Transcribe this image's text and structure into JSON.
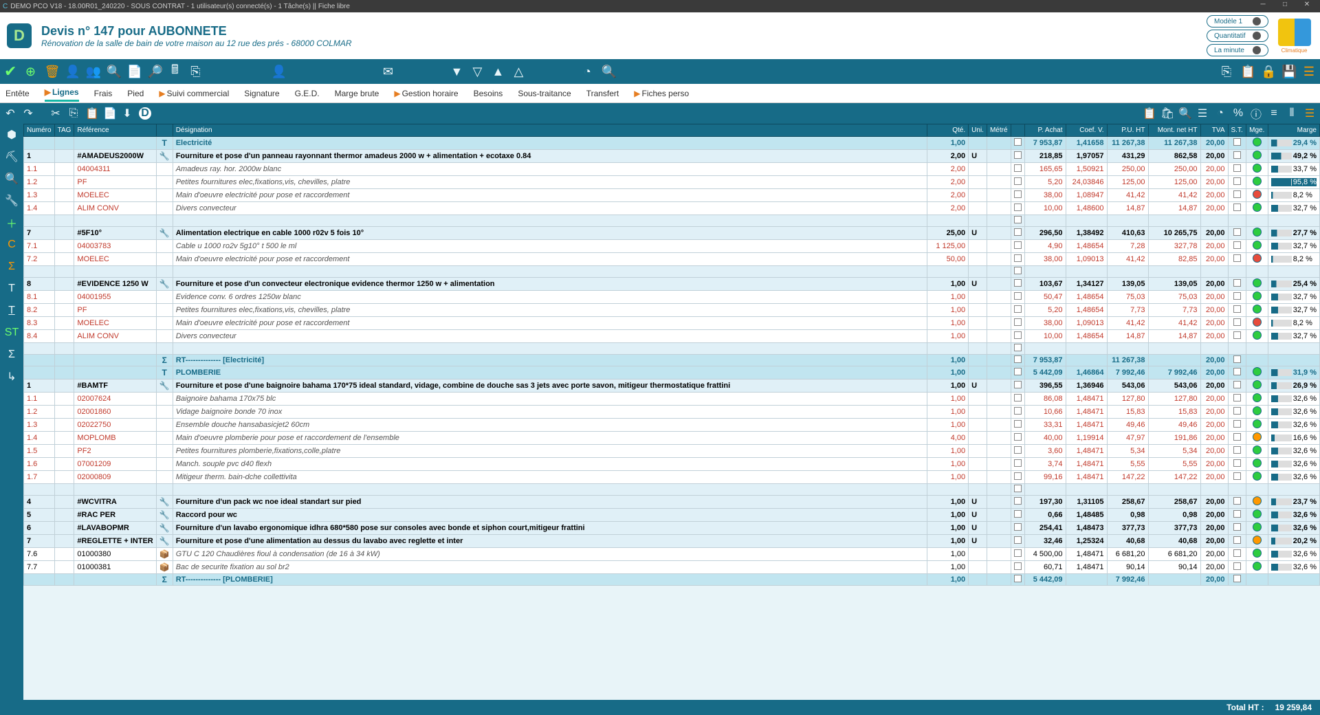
{
  "titlebar": "DEMO PCO V18 - 18.00R01_240220 - SOUS CONTRAT - 1 utilisateur(s) connecté(s) - 1 Tâche(s) || Fiche libre",
  "header": {
    "title": "Devis n° 147 pour AUBONNETE",
    "subtitle": "Rénovation de la salle de bain de votre maison au 12 rue des prés - 68000 COLMAR",
    "btns": [
      "Modèle 1",
      "Quantitatif",
      "La minute"
    ],
    "climat": "Climatique"
  },
  "tabs": [
    "Entête",
    "Lignes",
    "Frais",
    "Pied",
    "Suivi commercial",
    "Signature",
    "G.E.D.",
    "Marge brute",
    "Gestion horaire",
    "Besoins",
    "Sous-traitance",
    "Transfert",
    "Fiches perso"
  ],
  "tabs_arrow": [
    false,
    true,
    false,
    false,
    true,
    false,
    false,
    false,
    true,
    false,
    false,
    false,
    true
  ],
  "active_tab": 1,
  "columns": [
    "Numéro",
    "TAG",
    "Référence",
    "",
    "Désignation",
    "Qté.",
    "Uni.",
    "Métré",
    "",
    "P. Achat",
    "Coef. V.",
    "P.U. HT",
    "Mont. net HT",
    "TVA",
    "S.T.",
    "Mge.",
    "Marge"
  ],
  "rows": [
    {
      "type": "section",
      "ico": "T",
      "desig": "Electricité",
      "qte": "1,00",
      "cb": 1,
      "pa": "7 953,87",
      "cv": "1,41658",
      "pu": "11 267,38",
      "mnt": "11 267,38",
      "tva": "20,00",
      "st": 1,
      "mge": "green",
      "marge": "29,4 %",
      "mp": 29
    },
    {
      "type": "work",
      "num": "1",
      "ref": "#AMADEUS2000W",
      "ico": "🔧",
      "desig": "Fourniture et pose d'un panneau rayonnant thermor  amadeus 2000 w + alimentation + ecotaxe 0.84",
      "qte": "2,00",
      "uni": "U",
      "cb": 1,
      "pa": "218,85",
      "cv": "1,97057",
      "pu": "431,29",
      "mnt": "862,58",
      "tva": "20,00",
      "st": 1,
      "mge": "green",
      "marge": "49,2 %",
      "mp": 49
    },
    {
      "type": "detail",
      "num": "1.1",
      "ref": "04004311",
      "desig": "Amadeus ray. hor. 2000w blanc",
      "qte": "2,00",
      "cb": 1,
      "pa": "165,65",
      "cv": "1,50921",
      "pu": "250,00",
      "mnt": "250,00",
      "tva": "20,00",
      "st": 1,
      "mge": "green",
      "marge": "33,7 %",
      "mp": 34,
      "red": 1
    },
    {
      "type": "detail",
      "num": "1.2",
      "ref": "PF",
      "desig": "Petites fournitures elec,fixations,vis, chevilles, platre",
      "qte": "2,00",
      "cb": 1,
      "pa": "5,20",
      "cv": "24,03846",
      "pu": "125,00",
      "mnt": "125,00",
      "tva": "20,00",
      "st": 1,
      "mge": "green",
      "marge": "95,8 %",
      "mp": 96,
      "red": 1,
      "hl": 1
    },
    {
      "type": "detail",
      "num": "1.3",
      "ref": "MOELEC",
      "desig": "Main d'oeuvre electricité pour pose et raccordement",
      "qte": "2,00",
      "cb": 1,
      "pa": "38,00",
      "cv": "1,08947",
      "pu": "41,42",
      "mnt": "41,42",
      "tva": "20,00",
      "st": 1,
      "mge": "red",
      "marge": "8,2 %",
      "mp": 8,
      "red": 1
    },
    {
      "type": "detail",
      "num": "1.4",
      "ref": "ALIM CONV",
      "desig": "Divers convecteur",
      "qte": "2,00",
      "cb": 1,
      "pa": "10,00",
      "cv": "1,48600",
      "pu": "14,87",
      "mnt": "14,87",
      "tva": "20,00",
      "st": 1,
      "mge": "green",
      "marge": "32,7 %",
      "mp": 33,
      "red": 1
    },
    {
      "type": "blank",
      "cb": 1
    },
    {
      "type": "work",
      "num": "7",
      "ref": "#5F10°",
      "ico": "🔧",
      "desig": "Alimentation electrique en cable 1000 r02v 5 fois 10°",
      "qte": "25,00",
      "uni": "U",
      "cb": 1,
      "pa": "296,50",
      "cv": "1,38492",
      "pu": "410,63",
      "mnt": "10 265,75",
      "tva": "20,00",
      "st": 1,
      "mge": "green",
      "marge": "27,7 %",
      "mp": 28
    },
    {
      "type": "detail",
      "num": "7.1",
      "ref": "04003783",
      "desig": "Cable u 1000 ro2v 5g10° t 500 le ml",
      "qte": "1 125,00",
      "cb": 1,
      "pa": "4,90",
      "cv": "1,48654",
      "pu": "7,28",
      "mnt": "327,78",
      "tva": "20,00",
      "st": 1,
      "mge": "green",
      "marge": "32,7 %",
      "mp": 33,
      "red": 1
    },
    {
      "type": "detail",
      "num": "7.2",
      "ref": "MOELEC",
      "desig": "Main d'oeuvre electricité pour pose et raccordement",
      "qte": "50,00",
      "cb": 1,
      "pa": "38,00",
      "cv": "1,09013",
      "pu": "41,42",
      "mnt": "82,85",
      "tva": "20,00",
      "st": 1,
      "mge": "red",
      "marge": "8,2 %",
      "mp": 8,
      "red": 1
    },
    {
      "type": "blank",
      "cb": 1
    },
    {
      "type": "work",
      "num": "8",
      "ref": "#EVIDENCE 1250 W",
      "ico": "🔧",
      "desig": "Fourniture et pose d'un convecteur electronique evidence thermor 1250 w + alimentation",
      "qte": "1,00",
      "uni": "U",
      "cb": 1,
      "pa": "103,67",
      "cv": "1,34127",
      "pu": "139,05",
      "mnt": "139,05",
      "tva": "20,00",
      "st": 1,
      "mge": "green",
      "marge": "25,4 %",
      "mp": 25
    },
    {
      "type": "detail",
      "num": "8.1",
      "ref": "04001955",
      "desig": "Evidence conv. 6 ordres 1250w blanc",
      "qte": "1,00",
      "cb": 1,
      "pa": "50,47",
      "cv": "1,48654",
      "pu": "75,03",
      "mnt": "75,03",
      "tva": "20,00",
      "st": 1,
      "mge": "green",
      "marge": "32,7 %",
      "mp": 33,
      "red": 1
    },
    {
      "type": "detail",
      "num": "8.2",
      "ref": "PF",
      "desig": "Petites fournitures elec,fixations,vis, chevilles, platre",
      "qte": "1,00",
      "cb": 1,
      "pa": "5,20",
      "cv": "1,48654",
      "pu": "7,73",
      "mnt": "7,73",
      "tva": "20,00",
      "st": 1,
      "mge": "green",
      "marge": "32,7 %",
      "mp": 33,
      "red": 1
    },
    {
      "type": "detail",
      "num": "8.3",
      "ref": "MOELEC",
      "desig": "Main d'oeuvre electricité pour pose et raccordement",
      "qte": "1,00",
      "cb": 1,
      "pa": "38,00",
      "cv": "1,09013",
      "pu": "41,42",
      "mnt": "41,42",
      "tva": "20,00",
      "st": 1,
      "mge": "red",
      "marge": "8,2 %",
      "mp": 8,
      "red": 1
    },
    {
      "type": "detail",
      "num": "8.4",
      "ref": "ALIM CONV",
      "desig": "Divers convecteur",
      "qte": "1,00",
      "cb": 1,
      "pa": "10,00",
      "cv": "1,48654",
      "pu": "14,87",
      "mnt": "14,87",
      "tva": "20,00",
      "st": 1,
      "mge": "green",
      "marge": "32,7 %",
      "mp": 33,
      "red": 1
    },
    {
      "type": "blank",
      "cb": 1
    },
    {
      "type": "sigma",
      "ico": "Σ",
      "desig": "RT-------------- [Electricité]",
      "qte": "1,00",
      "cb": 1,
      "pa": "7 953,87",
      "pu": "11 267,38",
      "tva": "20,00",
      "st": 1
    },
    {
      "type": "section",
      "ico": "T",
      "desig": "PLOMBERIE",
      "qte": "1,00",
      "cb": 1,
      "pa": "5 442,09",
      "cv": "1,46864",
      "pu": "7 992,46",
      "mnt": "7 992,46",
      "tva": "20,00",
      "st": 1,
      "mge": "green",
      "marge": "31,9 %",
      "mp": 32
    },
    {
      "type": "work",
      "num": "1",
      "ref": "#BAMTF",
      "ico": "🔧",
      "desig": "Fourniture  et pose d'une baignoire bahama 170*75 ideal standard,   vidage, combine de douche sas 3 jets avec porte savon, mitigeur thermostatique frattini",
      "qte": "1,00",
      "uni": "U",
      "cb": 1,
      "pa": "396,55",
      "cv": "1,36946",
      "pu": "543,06",
      "mnt": "543,06",
      "tva": "20,00",
      "st": 1,
      "mge": "green",
      "marge": "26,9 %",
      "mp": 27
    },
    {
      "type": "detail",
      "num": "1.1",
      "ref": "02007624",
      "desig": "Baignoire bahama 170x75 blc",
      "qte": "1,00",
      "cb": 1,
      "pa": "86,08",
      "cv": "1,48471",
      "pu": "127,80",
      "mnt": "127,80",
      "tva": "20,00",
      "st": 1,
      "mge": "green",
      "marge": "32,6 %",
      "mp": 33,
      "red": 1
    },
    {
      "type": "detail",
      "num": "1.2",
      "ref": "02001860",
      "desig": "Vidage baignoire bonde 70 inox",
      "qte": "1,00",
      "cb": 1,
      "pa": "10,66",
      "cv": "1,48471",
      "pu": "15,83",
      "mnt": "15,83",
      "tva": "20,00",
      "st": 1,
      "mge": "green",
      "marge": "32,6 %",
      "mp": 33,
      "red": 1
    },
    {
      "type": "detail",
      "num": "1.3",
      "ref": "02022750",
      "desig": "Ensemble douche hansabasicjet2 60cm",
      "qte": "1,00",
      "cb": 1,
      "pa": "33,31",
      "cv": "1,48471",
      "pu": "49,46",
      "mnt": "49,46",
      "tva": "20,00",
      "st": 1,
      "mge": "green",
      "marge": "32,6 %",
      "mp": 33,
      "red": 1
    },
    {
      "type": "detail",
      "num": "1.4",
      "ref": "MOPLOMB",
      "desig": "Main d'oeuvre  plomberie pour pose et raccordement de l'ensemble",
      "qte": "4,00",
      "cb": 1,
      "pa": "40,00",
      "cv": "1,19914",
      "pu": "47,97",
      "mnt": "191,86",
      "tva": "20,00",
      "st": 1,
      "mge": "orange",
      "marge": "16,6 %",
      "mp": 17,
      "red": 1
    },
    {
      "type": "detail",
      "num": "1.5",
      "ref": "PF2",
      "desig": "Petites fournitures plomberie,fixations,colle,platre",
      "qte": "1,00",
      "cb": 1,
      "pa": "3,60",
      "cv": "1,48471",
      "pu": "5,34",
      "mnt": "5,34",
      "tva": "20,00",
      "st": 1,
      "mge": "green",
      "marge": "32,6 %",
      "mp": 33,
      "red": 1
    },
    {
      "type": "detail",
      "num": "1.6",
      "ref": "07001209",
      "desig": "Manch. souple pvc d40 flexh",
      "qte": "1,00",
      "cb": 1,
      "pa": "3,74",
      "cv": "1,48471",
      "pu": "5,55",
      "mnt": "5,55",
      "tva": "20,00",
      "st": 1,
      "mge": "green",
      "marge": "32,6 %",
      "mp": 33,
      "red": 1
    },
    {
      "type": "detail",
      "num": "1.7",
      "ref": "02000809",
      "desig": "Mitigeur therm. bain-dche collettivita",
      "qte": "1,00",
      "cb": 1,
      "pa": "99,16",
      "cv": "1,48471",
      "pu": "147,22",
      "mnt": "147,22",
      "tva": "20,00",
      "st": 1,
      "mge": "green",
      "marge": "32,6 %",
      "mp": 33,
      "red": 1
    },
    {
      "type": "blank",
      "cb": 1
    },
    {
      "type": "work",
      "num": "4",
      "ref": "#WCVITRA",
      "ico": "🔧",
      "desig": "Fourniture  d'un pack wc noe ideal standart sur pied",
      "qte": "1,00",
      "uni": "U",
      "cb": 1,
      "pa": "197,30",
      "cv": "1,31105",
      "pu": "258,67",
      "mnt": "258,67",
      "tva": "20,00",
      "st": 1,
      "mge": "orange",
      "marge": "23,7 %",
      "mp": 24
    },
    {
      "type": "work",
      "num": "5",
      "ref": "#RAC PER",
      "ico": "🔧",
      "desig": "Raccord pour wc",
      "qte": "1,00",
      "uni": "U",
      "cb": 1,
      "pa": "0,66",
      "cv": "1,48485",
      "pu": "0,98",
      "mnt": "0,98",
      "tva": "20,00",
      "st": 1,
      "mge": "green",
      "marge": "32,6 %",
      "mp": 33
    },
    {
      "type": "work",
      "num": "6",
      "ref": "#LAVABOPMR",
      "ico": "🔧",
      "desig": "Fourniture  d'un lavabo ergonomique idhra 680*580 pose sur consoles avec bonde et siphon court,mitigeur frattini",
      "qte": "1,00",
      "uni": "U",
      "cb": 1,
      "pa": "254,41",
      "cv": "1,48473",
      "pu": "377,73",
      "mnt": "377,73",
      "tva": "20,00",
      "st": 1,
      "mge": "green",
      "marge": "32,6 %",
      "mp": 33
    },
    {
      "type": "work",
      "num": "7",
      "ref": "#REGLETTE + INTER",
      "ico": "🔧",
      "desig": "Fourniture et pose d'une alimentation au dessus du lavabo avec reglette et inter",
      "qte": "1,00",
      "uni": "U",
      "cb": 1,
      "pa": "32,46",
      "cv": "1,25324",
      "pu": "40,68",
      "mnt": "40,68",
      "tva": "20,00",
      "st": 1,
      "mge": "orange",
      "marge": "20,2 %",
      "mp": 20
    },
    {
      "type": "detail",
      "num": "7.6",
      "ref": "01000380",
      "ico": "📦",
      "desig": "GTU C 120 Chaudières fioul à condensation (de 16 à 34 kW)",
      "qte": "1,00",
      "cb": 1,
      "pa": "4 500,00",
      "cv": "1,48471",
      "pu": "6 681,20",
      "mnt": "6 681,20",
      "tva": "20,00",
      "st": 1,
      "mge": "green",
      "marge": "32,6 %",
      "mp": 33
    },
    {
      "type": "detail",
      "num": "7.7",
      "ref": "01000381",
      "ico": "📦",
      "desig": "Bac de securite fixation au sol br2",
      "qte": "1,00",
      "cb": 1,
      "pa": "60,71",
      "cv": "1,48471",
      "pu": "90,14",
      "mnt": "90,14",
      "tva": "20,00",
      "st": 1,
      "mge": "green",
      "marge": "32,6 %",
      "mp": 33
    },
    {
      "type": "sigma",
      "ico": "Σ",
      "desig": "RT-------------- [PLOMBERIE]",
      "qte": "1,00",
      "cb": 1,
      "pa": "5 442,09",
      "pu": "7 992,46",
      "tva": "20,00",
      "st": 1
    }
  ],
  "footer": {
    "label": "Total HT :",
    "value": "19 259,84"
  }
}
